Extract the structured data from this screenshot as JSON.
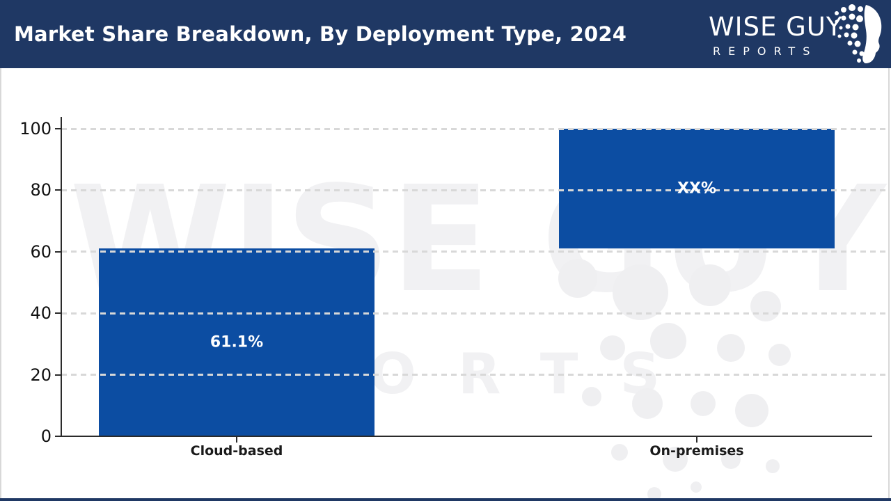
{
  "header": {
    "title": "Market Share Breakdown, By Deployment Type, 2024",
    "logo": {
      "line1": "WISE GUY",
      "line2": "REPORTS"
    }
  },
  "watermark": {
    "line1": "WISE GUY",
    "line2": "REPORTS"
  },
  "colors": {
    "header_bg": "#1f3864",
    "bar": "#0c4da2",
    "watermark": "#f1f1f3",
    "gridline": "#d8d8d8"
  },
  "chart_data": {
    "type": "bar",
    "title": "Market Share Breakdown, By Deployment Type, 2024",
    "categories": [
      "Cloud-based",
      "On-premises"
    ],
    "bars": [
      {
        "category": "Cloud-based",
        "from": 0,
        "to": 61.1,
        "label": "61.1%"
      },
      {
        "category": "On-premises",
        "from": 61.1,
        "to": 100,
        "label": "XX%"
      }
    ],
    "values": [
      61.1,
      38.9
    ],
    "yticks": [
      100,
      80,
      60,
      40,
      20,
      0
    ],
    "ylim": [
      0,
      100
    ],
    "xlabel": "",
    "ylabel": "",
    "grid": "dashed-horizontal",
    "legend": "none"
  }
}
